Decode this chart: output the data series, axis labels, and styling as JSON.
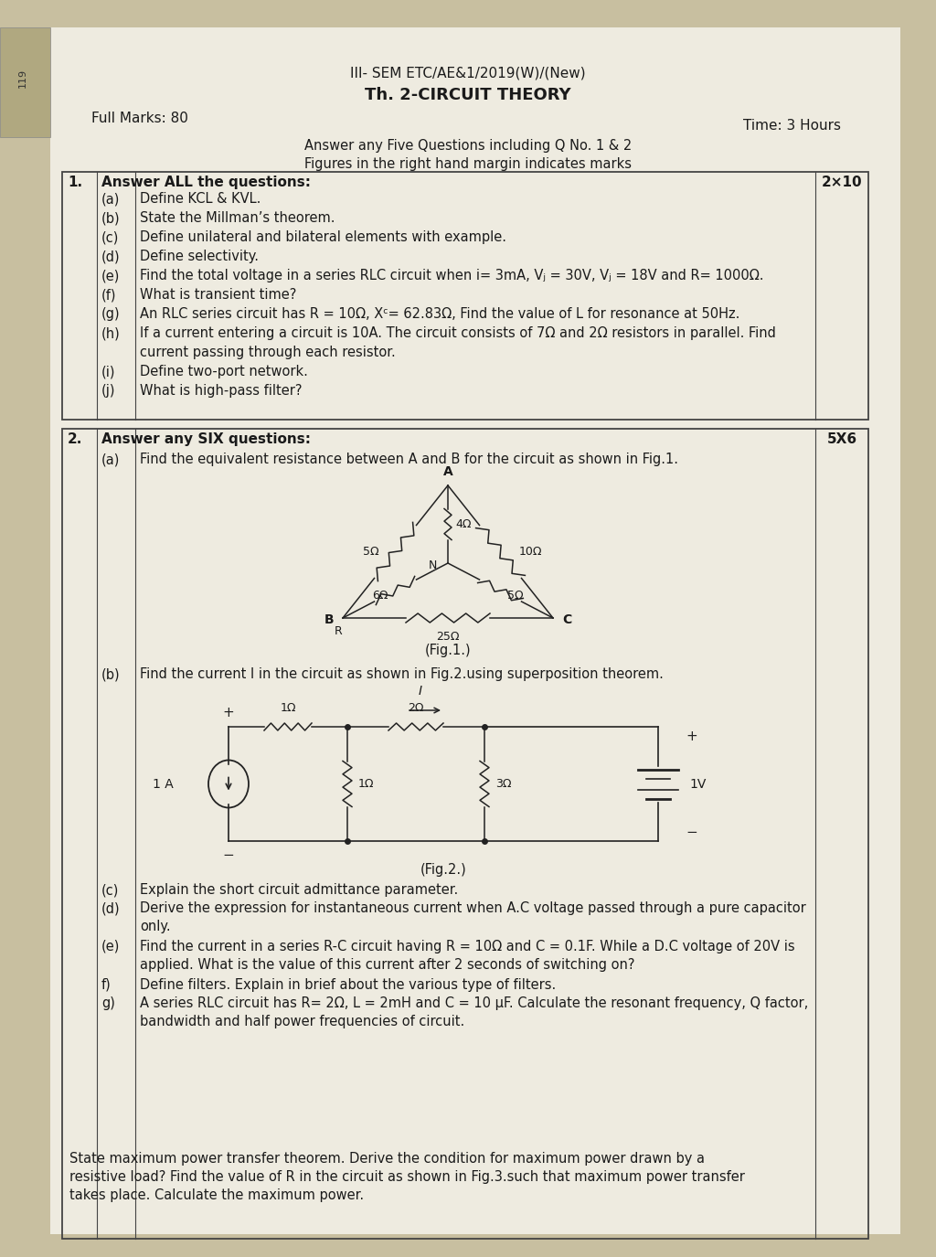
{
  "bg_color": "#c8bfa0",
  "paper_bg": "#eeebe0",
  "title1": "III- SEM ETC/AE&1/2019(W)/(New)",
  "title2": "Th. 2-CIRCUIT THEORY",
  "full_marks": "Full Marks: 80",
  "time": "Time: 3 Hours",
  "instruction1": "Answer any Five Questions including Q No. 1 & 2",
  "instruction2": "Figures in the right hand margin indicates marks",
  "q1_mark": "2×10",
  "q1_items": [
    [
      "(a)",
      "Define KCL & KVL."
    ],
    [
      "(b)",
      "State the Millman’s theorem."
    ],
    [
      "(c)",
      "Define unilateral and bilateral elements with example."
    ],
    [
      "(d)",
      "Define selectivity."
    ],
    [
      "(e)",
      "Find the total voltage in a series RLC circuit when i= 3mA, Vⱼ = 30V, Vⱼ = 18V and R= 1000Ω."
    ],
    [
      "(f)",
      "What is transient time?"
    ],
    [
      "(g)",
      "An RLC series circuit has R = 10Ω, Xᶜ= 62.83Ω, Find the value of L for resonance at 50Hz."
    ],
    [
      "(h)",
      "If a current entering a circuit is 10A. The circuit consists of 7Ω and 2Ω resistors in parallel. Find"
    ],
    [
      "",
      "current passing through each resistor."
    ],
    [
      "(i)",
      "Define two-port network."
    ],
    [
      "(j)",
      "What is high-pass filter?"
    ]
  ],
  "q2a_text": "Find the equivalent resistance between A and B for the circuit as shown in Fig.1.",
  "fig1_caption": "(Fig.1.)",
  "q2b_text": "Find the current I in the circuit as shown in Fig.2.using superposition theorem.",
  "fig2_caption": "(Fig.2.)",
  "q2c_text": "Explain the short circuit admittance parameter.",
  "q2d_text": "Derive the expression for instantaneous current when A.C voltage passed through a pure capacitor",
  "q2d_text2": "only.",
  "q2e_text": "Find the current in a series R-C circuit having R = 10Ω and C = 0.1F. While a D.C voltage of 20V is",
  "q2e_text2": "applied. What is the value of this current after 2 seconds of switching on?",
  "q2f_text": "Define filters. Explain in brief about the various type of filters.",
  "q2g_text": "A series RLC circuit has R= 2Ω, L = 2mH and C = 10 μF. Calculate the resonant frequency, Q factor,",
  "q2g_text2": "bandwidth and half power frequencies of circuit.",
  "q3_text1": "State maximum power transfer theorem. Derive the condition for maximum power drawn by a",
  "q3_text2": "resistive load? Find the value of R in the circuit as shown in Fig.3.such that maximum power transfer",
  "q3_text3": "takes place. Calculate the maximum power.",
  "q5x6": "5X6",
  "left_tab_label": "119"
}
